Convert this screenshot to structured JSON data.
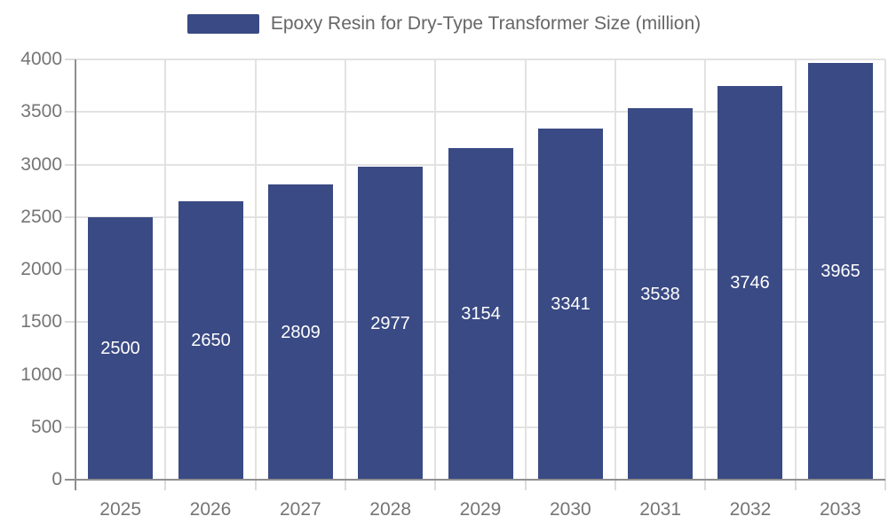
{
  "legend": {
    "label": "Epoxy Resin for Dry-Type Transformer Size (million)"
  },
  "colors": {
    "bar": "#3A4A84",
    "bar_label": "#FFFFFF",
    "grid": "#E2E2E2",
    "tick_mark": "#DCDCDC",
    "axis_line": "#8F8F8F",
    "tick_label": "#757575",
    "legend_text": "#666666",
    "background": "#FFFFFF"
  },
  "chart_data": {
    "type": "bar",
    "title": "Epoxy Resin for Dry-Type Transformer Size (million)",
    "categories": [
      "2025",
      "2026",
      "2027",
      "2028",
      "2029",
      "2030",
      "2031",
      "2032",
      "2033"
    ],
    "values": [
      2500,
      2650,
      2809,
      2977,
      3154,
      3341,
      3538,
      3746,
      3965
    ],
    "xlabel": "",
    "ylabel": "",
    "ylim": [
      0,
      4000
    ],
    "ytick_step": 500,
    "yticks": [
      0,
      500,
      1000,
      1500,
      2000,
      2500,
      3000,
      3500,
      4000
    ],
    "grid": true,
    "legend_position": "top",
    "bar_labels_visible": true,
    "bar_label_position": "inside-center"
  }
}
